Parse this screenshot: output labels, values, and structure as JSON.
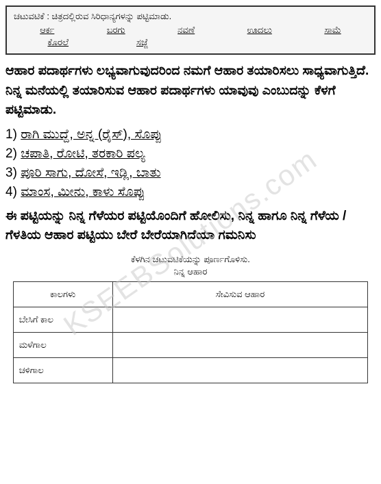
{
  "activity": {
    "title": "ಚಟುವಟಿಕೆ : ಚಿತ್ರದಲ್ಲಿರುವ ಸಿರಿಧಾನ್ಯಗಳನ್ನು ಪಟ್ಟಿಮಾಡು.",
    "row1": [
      "ಆರ್ಕ",
      "ಬರಗು",
      "ನವಣೆ",
      "ಊದಲು",
      "ಸಾಮೆ"
    ],
    "row2": [
      "ಕೊರಲೆ",
      "ಸಜ್ಜೆ"
    ]
  },
  "mainText": "ಆಹಾರ ಪದಾರ್ಥಗಳು ಲಭ್ಯವಾಗುವುದರಿಂದ ನಮಗೆ ಆಹಾರ ತಯಾರಿಸಲು ಸಾಧ್ಯವಾಗುತ್ತಿದೆ. ನಿನ್ನ ಮನೆಯಲ್ಲಿ ತಯಾರಿಸುವ ಆಹಾರ ಪದಾರ್ಥಗಳು ಯಾವುವು ಎಂಬುದನ್ನು ಕೆಳಗೆ ಪಟ್ಟಿಮಾಡು.",
  "listItems": [
    {
      "num": "1)",
      "content": "ರಾಗಿ ಮುದ್ದೆ, ಅನ್ನ (ರೈಸ್), ಸೊಪ್ಪು"
    },
    {
      "num": "2)",
      "content": "ಚಪಾತಿ, ರೋಟಿ, ತರಕಾರಿ ಪಲ್ಯ"
    },
    {
      "num": "3)",
      "content": "ಪೂರಿ ಸಾಗು, ದೋಸೆ, ಇಡ್ಲಿ, ಬಾತು"
    },
    {
      "num": "4)",
      "content": "ಮಾಂಸ, ಮೀನು, ಕಾಳು ಸೊಪ್ಪು"
    }
  ],
  "compareText": "ಈ ಪಟ್ಟಿಯನ್ನು ನಿನ್ನ ಗೆಳೆಯರ ಪಟ್ಟಿಯೊಂದಿಗೆ ಹೋಲಿಸು, ನಿನ್ನ ಹಾಗೂ ನಿನ್ನ ಗೆಳೆಯ / ಗೆಳತಿಯ ಆಹಾರ ಪಟ್ಟಿಯು ಬೇರೆ ಬೇರೆಯಾಗಿದೆಯಾ ಗಮನಿಸು",
  "tableTitle": "ಕೆಳಗಿನ ಚಟುವಟಿಕೆಯನ್ನು ಪೂರ್ಣಗೊಳಿಸು.",
  "tableSubtitle": "ನಿನ್ನ ಆಹಾರ",
  "table": {
    "headers": [
      "ಕಾಲಗಳು",
      "ಸೇವಿಸುವ ಆಹಾರ"
    ],
    "rows": [
      [
        "ಬೇಸಿಗೆ ಕಾಲ",
        ""
      ],
      [
        "ಮಳೆಗಾಲ",
        ""
      ],
      [
        "ಚಳಿಗಾಲ",
        ""
      ]
    ]
  },
  "watermark": "KSEEBSolutions.com"
}
